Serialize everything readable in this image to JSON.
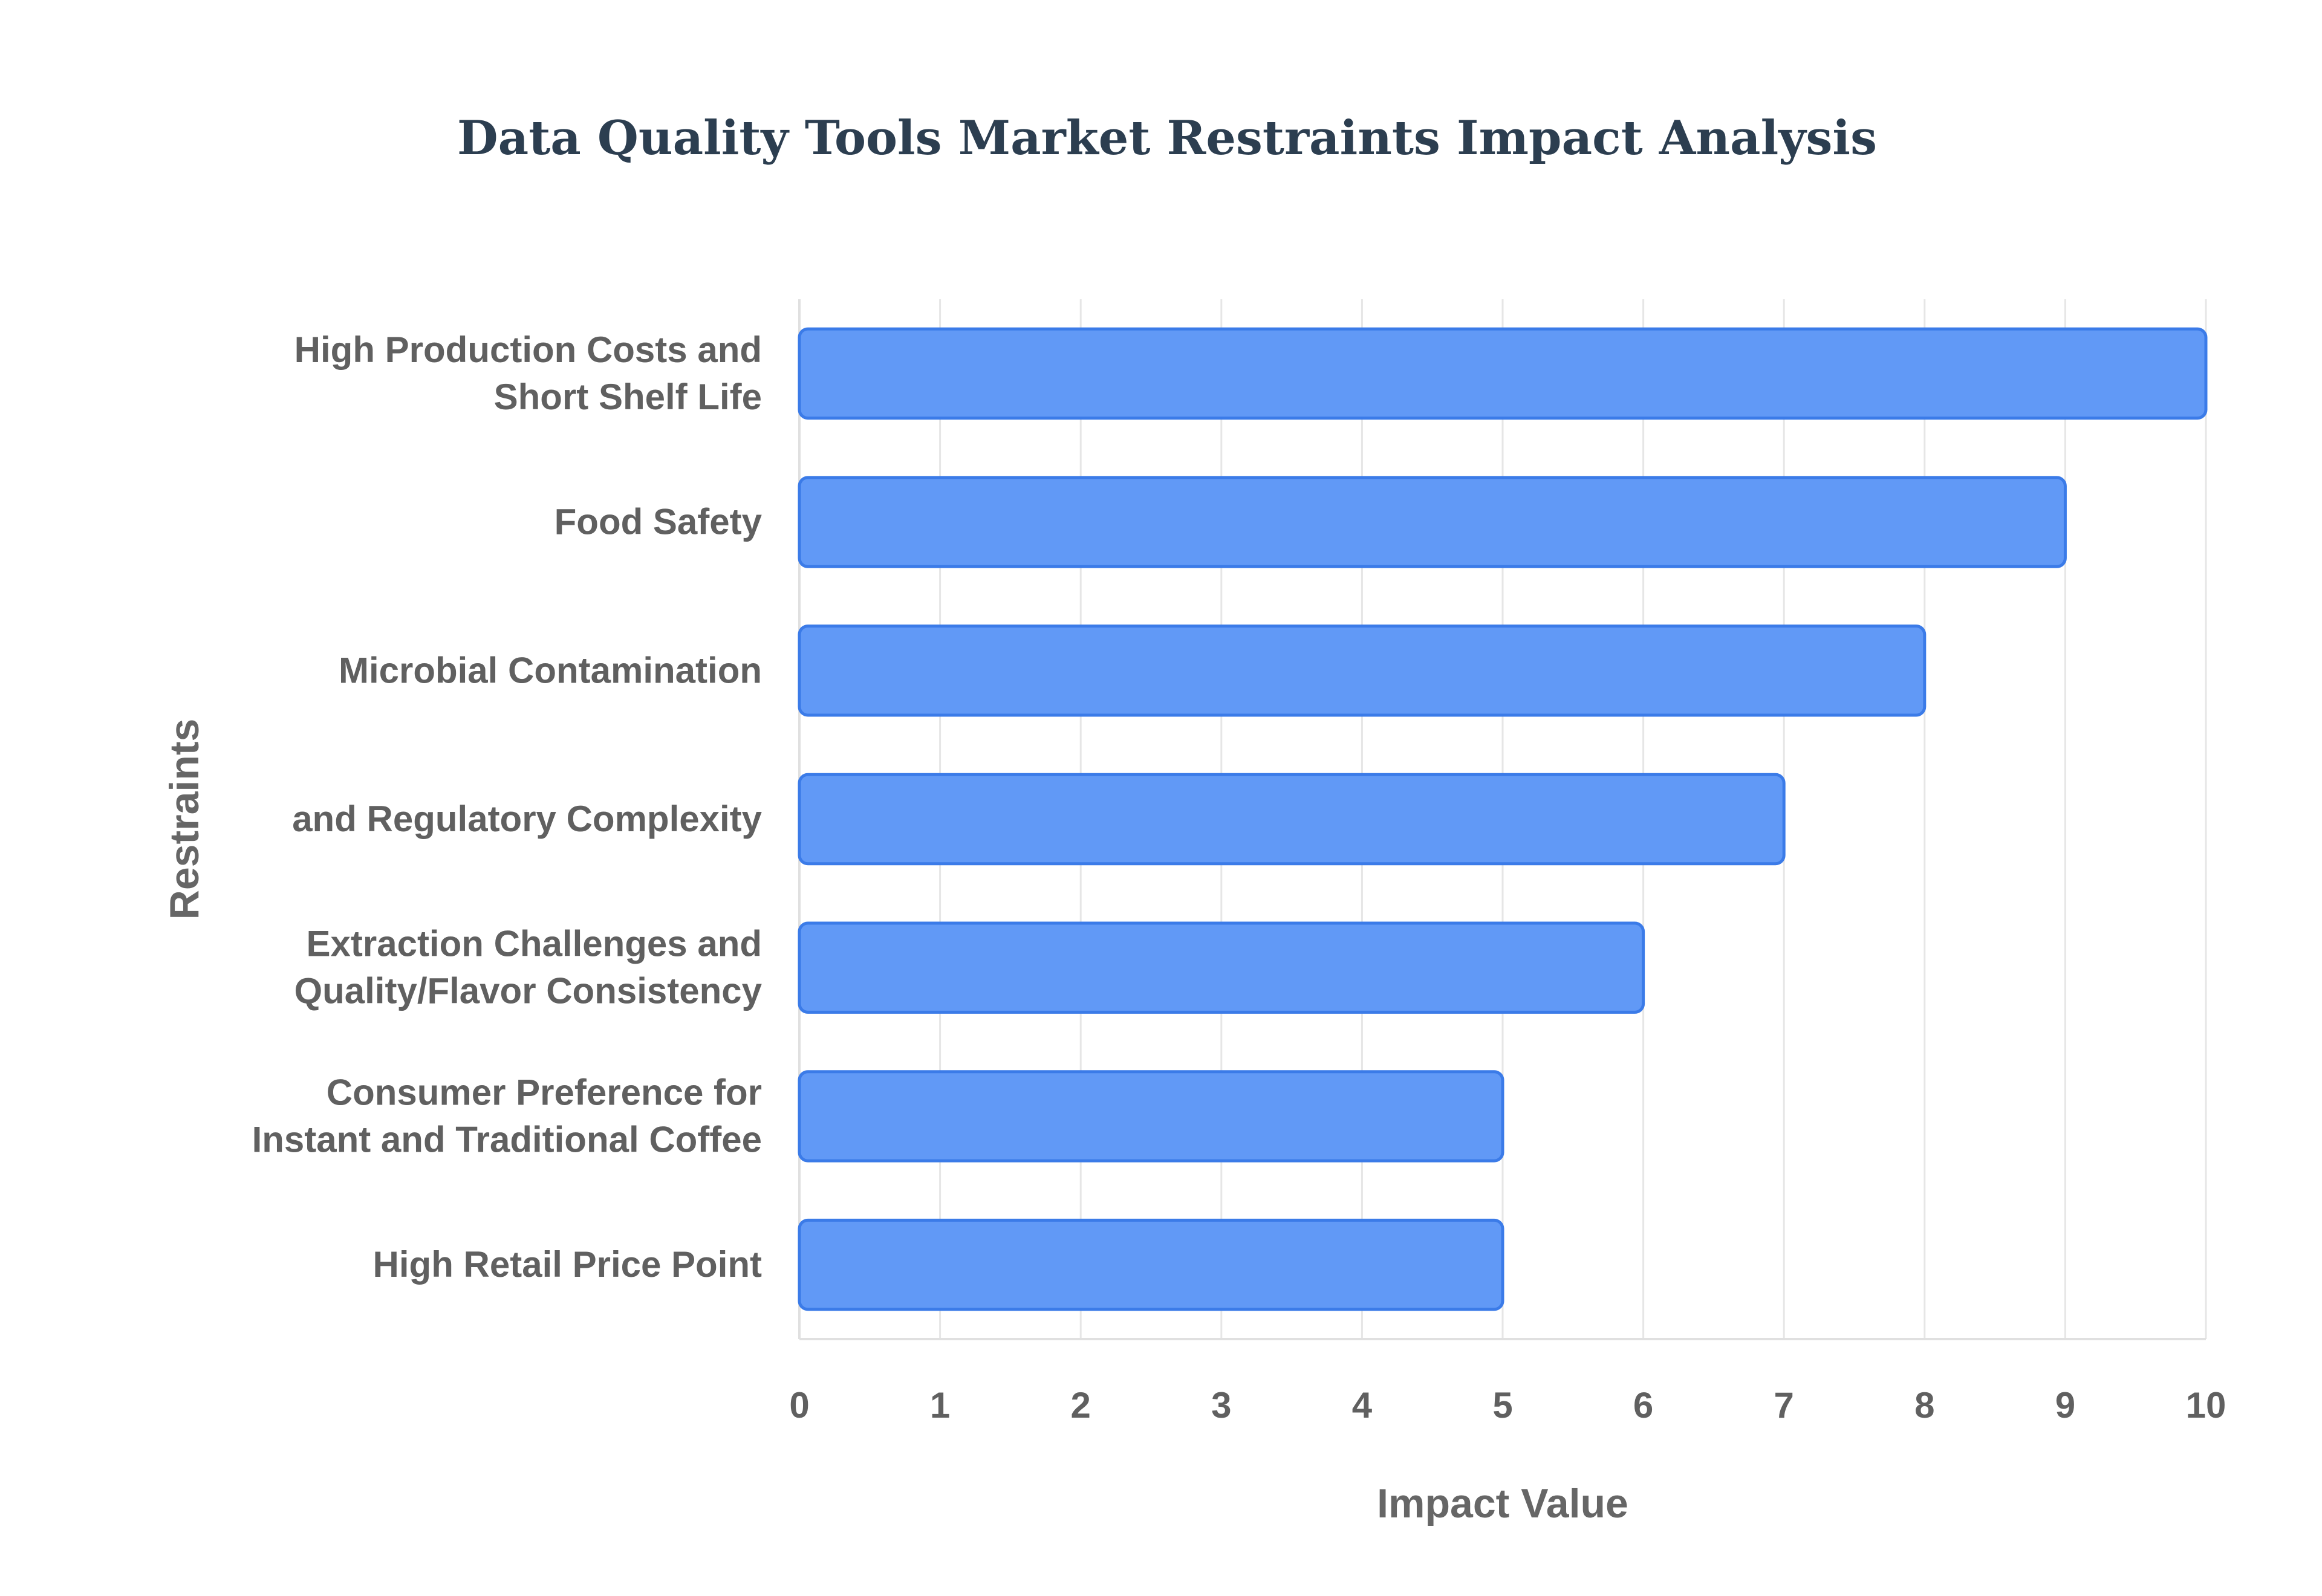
{
  "chart_data": {
    "type": "bar",
    "orientation": "horizontal",
    "title": "Data Quality Tools Market Restraints Impact Analysis",
    "xlabel": "Impact Value",
    "ylabel": "Restraints",
    "xlim": [
      0,
      10
    ],
    "xticks": [
      "0",
      "1",
      "2",
      "3",
      "4",
      "5",
      "6",
      "7",
      "8",
      "9",
      "10"
    ],
    "grid": true,
    "bar_color": "#6199f6",
    "bar_edge_color": "#3b7be8",
    "categories": [
      [
        "High Production Costs and",
        "Short Shelf Life"
      ],
      [
        "Food Safety"
      ],
      [
        "Microbial Contamination"
      ],
      [
        "and Regulatory Complexity"
      ],
      [
        "Extraction Challenges and",
        "Quality/Flavor Consistency"
      ],
      [
        "Consumer Preference for",
        "Instant and Traditional Coffee"
      ],
      [
        "High Retail Price Point"
      ]
    ],
    "values": [
      10,
      9,
      8,
      7,
      6,
      5,
      5
    ]
  }
}
